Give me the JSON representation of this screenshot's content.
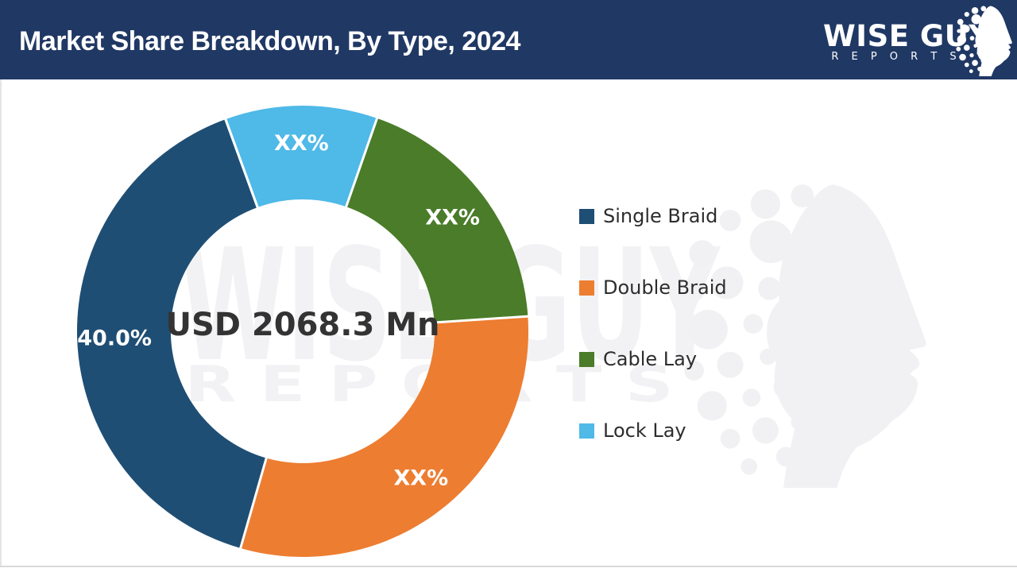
{
  "header": {
    "title": "Market Share Breakdown, By Type, 2024",
    "logo": {
      "brand": "WISE GUY",
      "tagline": "R E P O R T S"
    }
  },
  "watermark": {
    "brand": "WISE GUY",
    "tagline": "R E P O R T S"
  },
  "chart_data": {
    "type": "pie",
    "subtype": "donut",
    "title": "Market Share Breakdown, By Type, 2024",
    "center_label": "USD 2068.3 Mn",
    "start_angle_deg": -20,
    "inner_radius_ratio": 0.58,
    "segments": [
      {
        "label": "Lock Lay",
        "display_label": "XX%",
        "value_pct": 10.9,
        "color": "#4FB9E8"
      },
      {
        "label": "Cable Lay",
        "display_label": "XX%",
        "value_pct": 18.6,
        "color": "#4A7C29"
      },
      {
        "label": "Double Braid",
        "display_label": "XX%",
        "value_pct": 30.5,
        "color": "#ED7D31"
      },
      {
        "label": "Single Braid",
        "display_label": "40.0%",
        "value_pct": 40.0,
        "color": "#1F4E74"
      }
    ]
  },
  "legend": {
    "items": [
      {
        "label": "Single Braid",
        "color": "#1F4E74"
      },
      {
        "label": "Double Braid",
        "color": "#ED7D31"
      },
      {
        "label": "Cable Lay",
        "color": "#4A7C29"
      },
      {
        "label": "Lock Lay",
        "color": "#4FB9E8"
      }
    ]
  }
}
